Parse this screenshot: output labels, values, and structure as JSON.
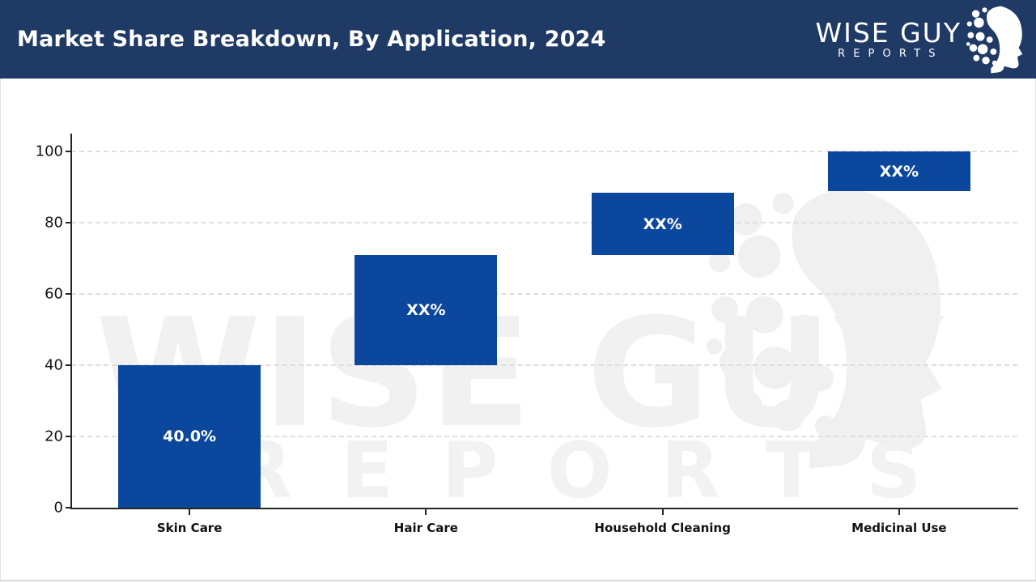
{
  "header": {
    "title": "Market Share Breakdown, By Application, 2024",
    "bg_color": "#203a66",
    "logo": {
      "line1": "WISE GUY",
      "line2": "REPORTS"
    }
  },
  "watermark": {
    "line1": "WISE GUY",
    "line2": "REPORTS"
  },
  "chart_data": {
    "type": "bar",
    "subtype": "waterfall",
    "title": "Market Share Breakdown, By Application, 2024",
    "xlabel": "",
    "ylabel": "",
    "categories": [
      "Skin Care",
      "Hair Care",
      "Household Cleaning",
      "Medicinal Use"
    ],
    "series": [
      {
        "category": "Skin Care",
        "start": 0,
        "end": 40.0,
        "label": "40.0%"
      },
      {
        "category": "Hair Care",
        "start": 40.0,
        "end": 70.8,
        "label": "XX%"
      },
      {
        "category": "Household Cleaning",
        "start": 70.8,
        "end": 88.4,
        "label": "XX%"
      },
      {
        "category": "Medicinal Use",
        "start": 88.8,
        "end": 100.0,
        "label": "XX%"
      }
    ],
    "masked_label": "XX%",
    "ylim": [
      0,
      105
    ],
    "yticks": [
      0,
      20,
      40,
      60,
      80,
      100
    ],
    "grid": "horizontal-dashed",
    "legend": "none",
    "bar_color": "#0b479c",
    "bar_label_color": "#ffffff",
    "grid_color": "#dedede",
    "axis_color": "#262626"
  }
}
